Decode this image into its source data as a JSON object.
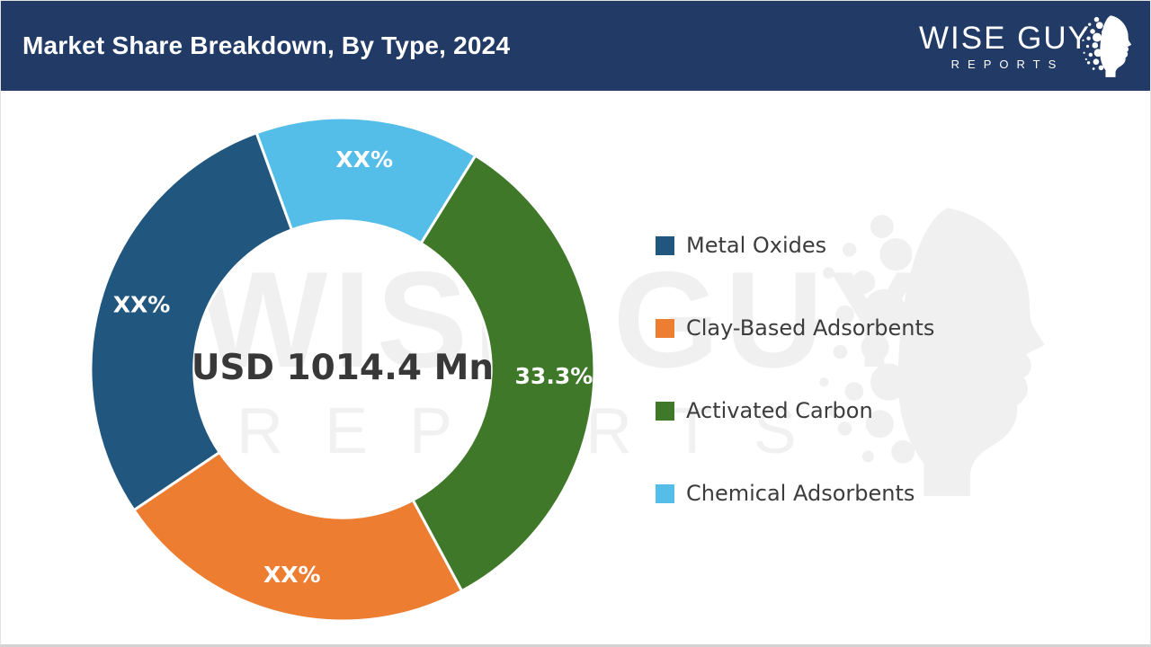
{
  "header": {
    "title": "Market Share Breakdown, By Type, 2024",
    "logo": {
      "name": "WISE GUY",
      "sub": "REPORTS"
    }
  },
  "watermark": {
    "line1": "WISE GUY",
    "line2": "REPORTS"
  },
  "colors": {
    "header_bg": "#213a66",
    "watermark": "#f0f0f1",
    "legend_text": "#3c3c3c",
    "center_text": "#383838"
  },
  "chart_data": {
    "type": "pie",
    "subtype": "donut",
    "title": "Market Share Breakdown, By Type, 2024",
    "center_label": "USD 1014.4 Mn",
    "start_angle_deg": 110,
    "counterclockwise": true,
    "donut_hole_ratio": 0.59,
    "legend_position": "right",
    "segments": [
      {
        "name": "Metal Oxides",
        "value": 28.9,
        "display_label": "XX%",
        "color": "#21567e"
      },
      {
        "name": "Clay-Based Adsorbents",
        "value": 23.4,
        "display_label": "XX%",
        "color": "#ed7d31"
      },
      {
        "name": "Activated Carbon",
        "value": 33.3,
        "display_label": "33.3%",
        "color": "#40782a"
      },
      {
        "name": "Chemical Adsorbents",
        "value": 14.4,
        "display_label": "XX%",
        "color": "#54bde8"
      }
    ]
  }
}
